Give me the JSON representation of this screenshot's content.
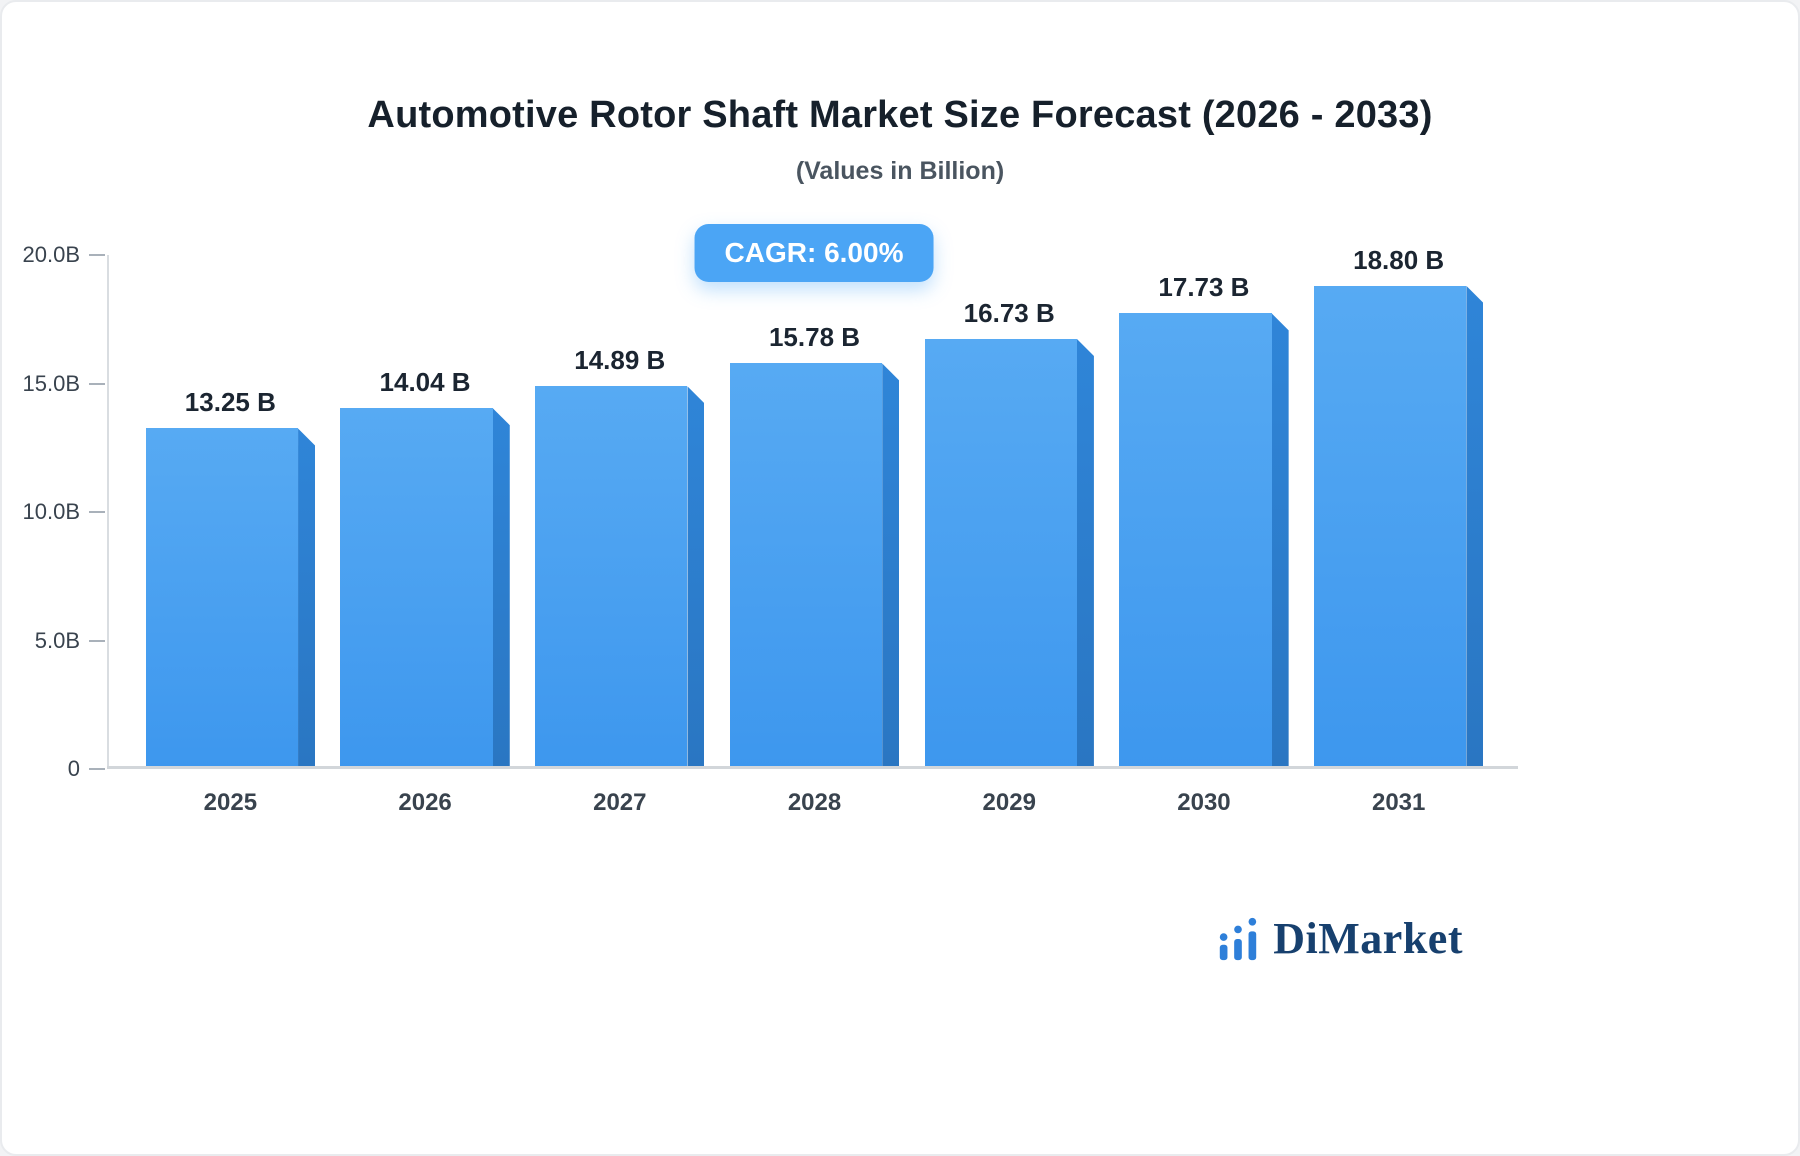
{
  "title": "Automotive Rotor Shaft Market Size Forecast (2026 - 2033)",
  "subtitle": "(Values in Billion)",
  "badge": {
    "label": "CAGR: 6.00%",
    "color": "#4BA5F5"
  },
  "chart_data": {
    "type": "bar",
    "categories": [
      "2025",
      "2026",
      "2027",
      "2028",
      "2029",
      "2030",
      "2031"
    ],
    "values": [
      13.25,
      14.04,
      14.89,
      15.78,
      16.73,
      17.73,
      18.8
    ],
    "value_labels": [
      "13.25 B",
      "14.04 B",
      "14.89 B",
      "15.78 B",
      "16.73 B",
      "17.73 B",
      "18.80 B"
    ],
    "title": "Automotive Rotor Shaft Market Size Forecast (2026 - 2033)",
    "xlabel": "",
    "ylabel": "",
    "ylim": [
      0,
      20
    ],
    "yticks": [
      {
        "value": 20,
        "label": "20.0B"
      },
      {
        "value": 15,
        "label": "15.0B"
      },
      {
        "value": 10,
        "label": "10.0B"
      },
      {
        "value": 5,
        "label": "5.0B"
      },
      {
        "value": 0,
        "label": "0"
      }
    ],
    "grid": false,
    "legend": false,
    "bar_gradient_top": "#57AAF3",
    "bar_gradient_bottom": "#3D97EE",
    "bar_side_color_top": "#2F85D8",
    "bar_side_color_bottom": "#2A76C2"
  },
  "logo": {
    "text": "DiMarket",
    "color": "#17406E",
    "icon_color": "#2E7FD9"
  }
}
